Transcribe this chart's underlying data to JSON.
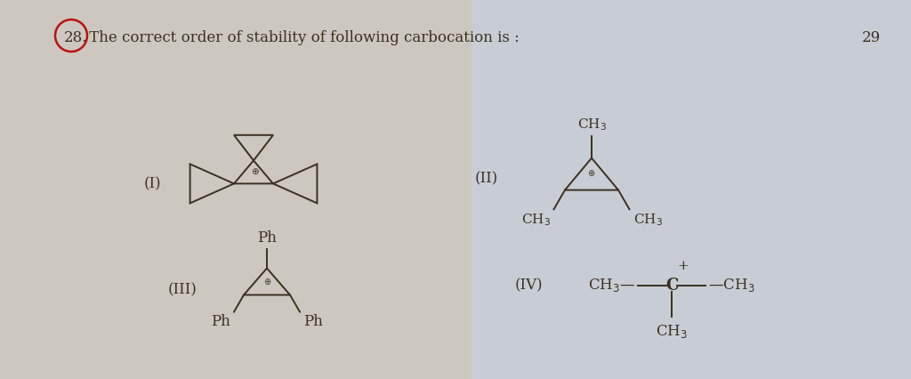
{
  "title_prefix": "28.",
  "title_text": " The correct order of stability of following carbocation is :",
  "bg_color_left": "#ccc8c0",
  "bg_color_right": "#c8cdd5",
  "question_num": "29",
  "lw": 1.4,
  "label_fs": 12,
  "sub_fs": 10,
  "chem_fs": 12
}
